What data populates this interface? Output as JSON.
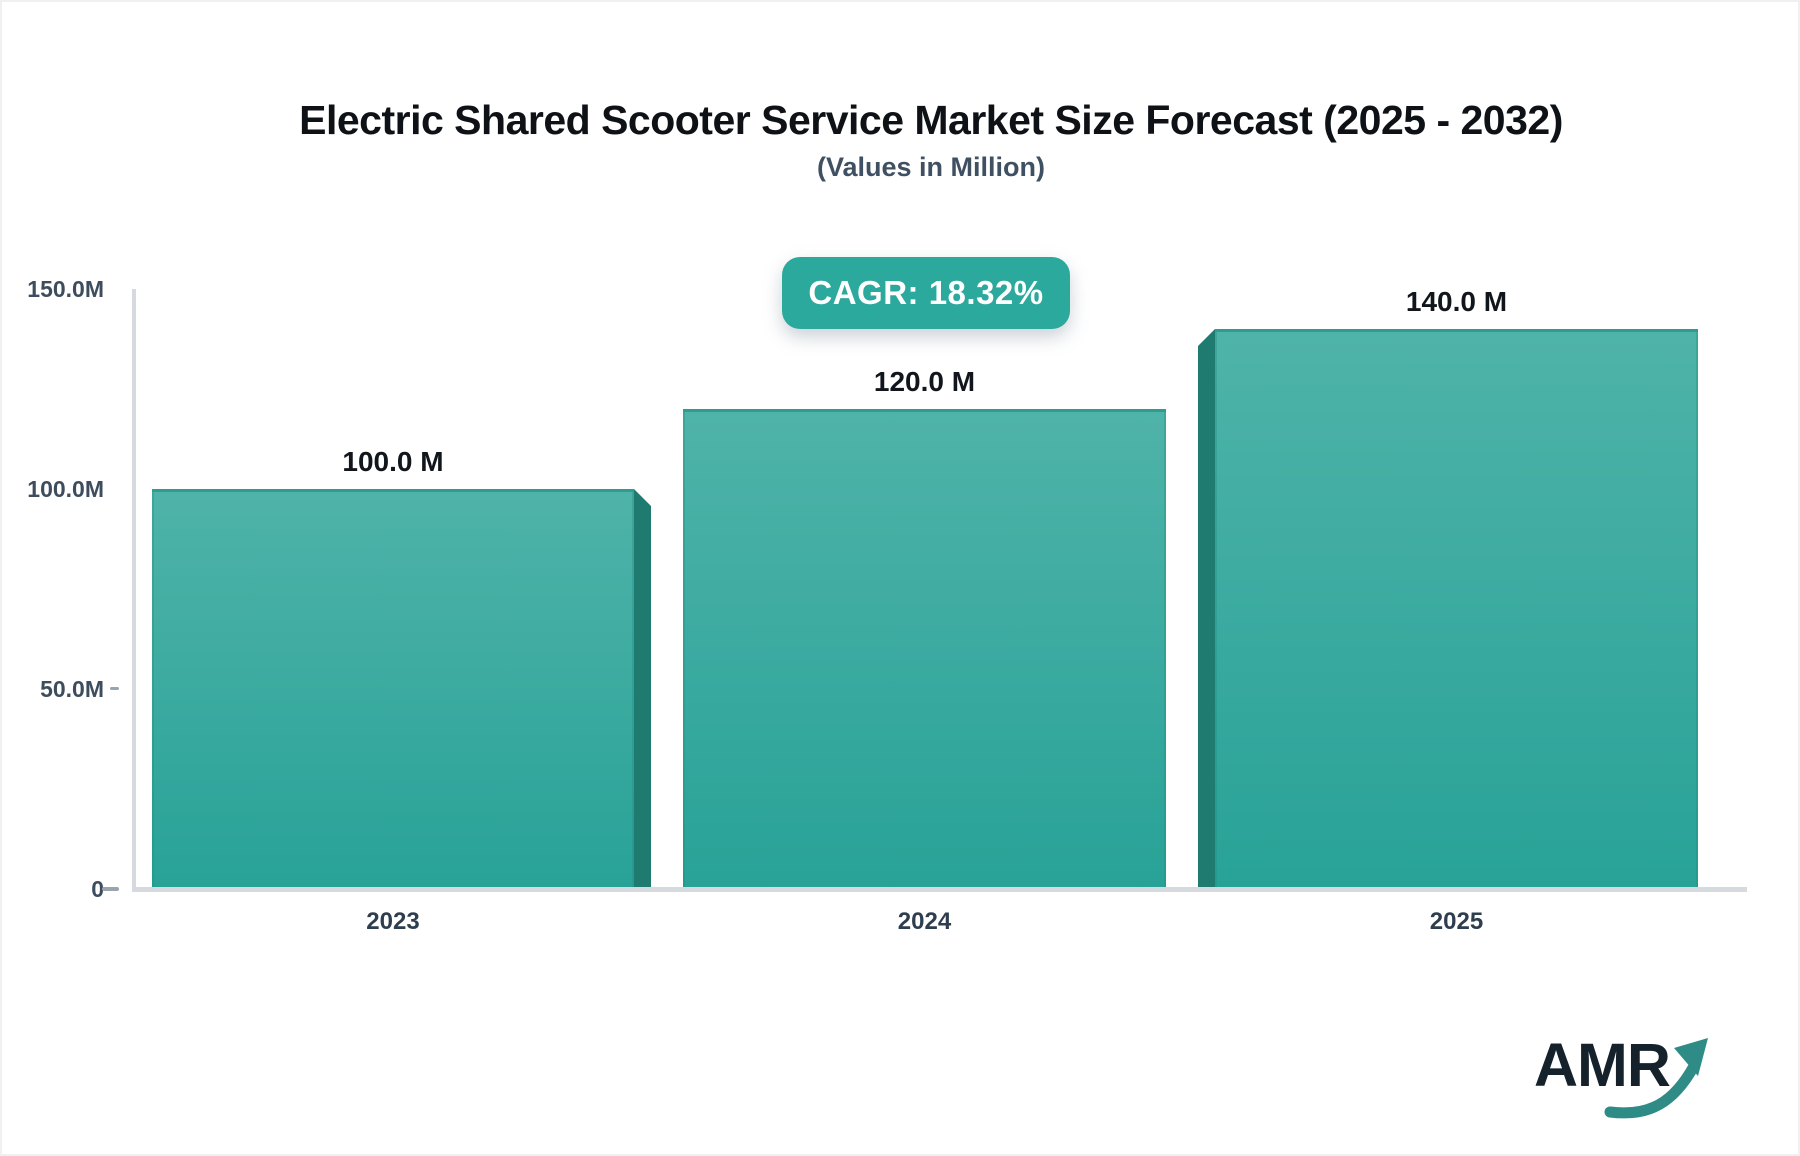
{
  "header": {
    "title": "Electric Shared Scooter Service Market Size Forecast (2025 - 2032)",
    "subtitle": "(Values in Million)"
  },
  "badge": {
    "label": "CAGR: 18.32%"
  },
  "chart_data": {
    "type": "bar",
    "title": "Electric Shared Scooter Service Market Size Forecast (2025 - 2032)",
    "subtitle": "(Values in Million)",
    "categories": [
      "2023",
      "2024",
      "2025"
    ],
    "values": [
      100,
      120,
      140
    ],
    "value_labels": [
      "100.0 M",
      "120.0 M",
      "140.0 M"
    ],
    "cagr": "CAGR: 18.32%",
    "ylim": [
      0,
      150
    ],
    "yticks": [
      {
        "label": "150.0M",
        "value": 150,
        "dash": false
      },
      {
        "label": "100.0M",
        "value": 100,
        "dash": false
      },
      {
        "label": "50.0M",
        "value": 50,
        "dash": true
      },
      {
        "label": "0",
        "value": 0,
        "dash": true
      }
    ],
    "grid": false,
    "legend": false,
    "bar_style": "3d-bevel-teal-gradient"
  },
  "logo": {
    "text": "AMR"
  },
  "colors": {
    "background": "#ffffff",
    "card_border": "#eef0f2",
    "accent_teal": "#2ba99c",
    "badge_text": "#ffffff",
    "bar_face_top": "#4fb3a9",
    "bar_face_bottom": "#28a297",
    "bar_side": "#1f7a70",
    "bar_top_edge": "#2f9c92",
    "axis_line": "#d6dade",
    "dash_color": "#9aa4ae",
    "tick_text": "#3e4d5d",
    "xlabel_text": "#2f3e4e",
    "value_text": "#10161c",
    "title_text": "#0e1217",
    "subtitle_text": "#3f5063",
    "logo_text": "#15212b",
    "logo_arrow": "#2e8b86"
  }
}
